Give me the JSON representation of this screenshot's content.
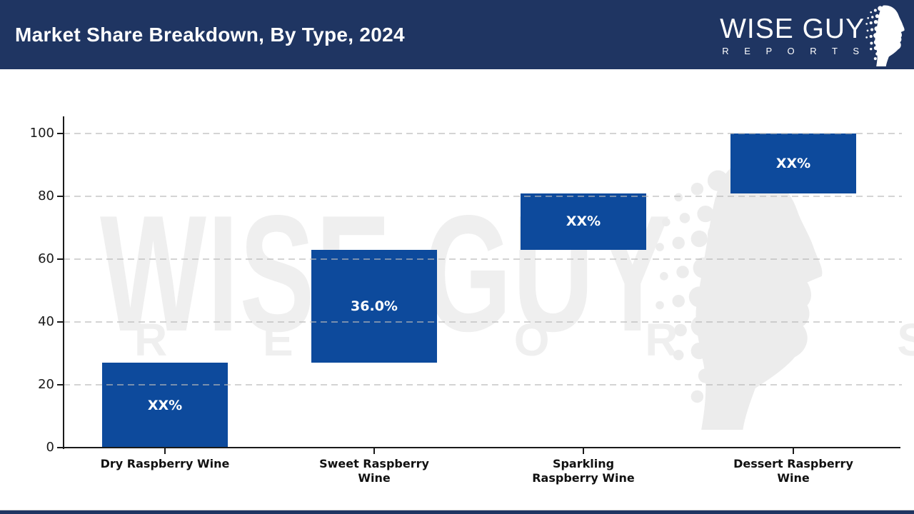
{
  "header": {
    "title": "Market Share Breakdown, By Type, 2024",
    "logo_wordmark": "WISE GUY",
    "logo_subtext": "R E P O R T S",
    "bg_color": "#1f3562"
  },
  "watermark": {
    "wordmark": "WISE GUY",
    "subtext": "R E P O R T S",
    "color": "#efefef"
  },
  "chart_data": {
    "type": "bar",
    "subtype": "floating-waterfall",
    "title": "Market Share Breakdown, By Type, 2024",
    "categories": [
      "Dry Raspberry Wine",
      "Sweet Raspberry\nWine",
      "Sparkling\nRaspberry Wine",
      "Dessert Raspberry\nWine"
    ],
    "bars": [
      {
        "category": "Dry Raspberry Wine",
        "start": 0,
        "end": 27,
        "label": "XX%"
      },
      {
        "category": "Sweet Raspberry Wine",
        "start": 27,
        "end": 63,
        "label": "36.0%"
      },
      {
        "category": "Sparkling Raspberry Wine",
        "start": 63,
        "end": 81,
        "label": "XX%"
      },
      {
        "category": "Dessert Raspberry Wine",
        "start": 81,
        "end": 100,
        "label": "XX%"
      }
    ],
    "bar_color": "#0d4a9c",
    "label_color": "#ffffff",
    "yticks": [
      "0",
      "20",
      "40",
      "60",
      "80",
      "100"
    ],
    "ylim": [
      0,
      100
    ],
    "xlabel": "",
    "ylabel": "",
    "grid": "horizontal-dashed",
    "gridline_color": "#c9c9c9"
  }
}
